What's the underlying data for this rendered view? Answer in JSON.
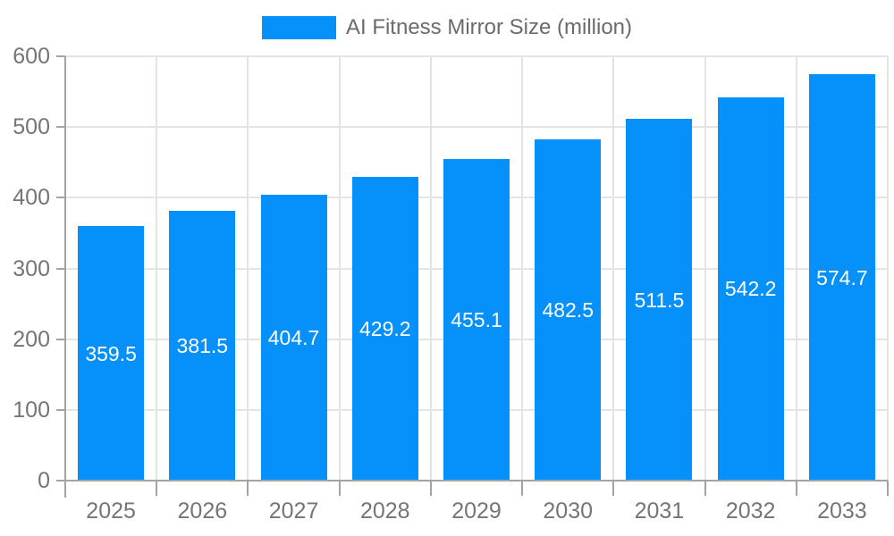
{
  "chart_data": {
    "type": "bar",
    "title": "",
    "legend": "AI Fitness Mirror Size (million)",
    "legend_position": "top-center",
    "categories": [
      "2025",
      "2026",
      "2027",
      "2028",
      "2029",
      "2030",
      "2031",
      "2032",
      "2033"
    ],
    "values": [
      359.5,
      381.5,
      404.7,
      429.2,
      455.1,
      482.5,
      511.5,
      542.2,
      574.7
    ],
    "xlabel": "",
    "ylabel": "",
    "ylim": [
      0,
      600
    ],
    "yticks": [
      0,
      100,
      200,
      300,
      400,
      500,
      600
    ],
    "grid": "horizontal and vertical boundary gridlines",
    "value_labels": "white, centered vertically inside bars",
    "colors": {
      "bar": "#0590fa",
      "value_label": "#ffffff",
      "axis": "#a3a3a3",
      "grid": "#e4e4e4",
      "tick_text": "#757575",
      "legend_text": "#6b6b6b"
    }
  }
}
